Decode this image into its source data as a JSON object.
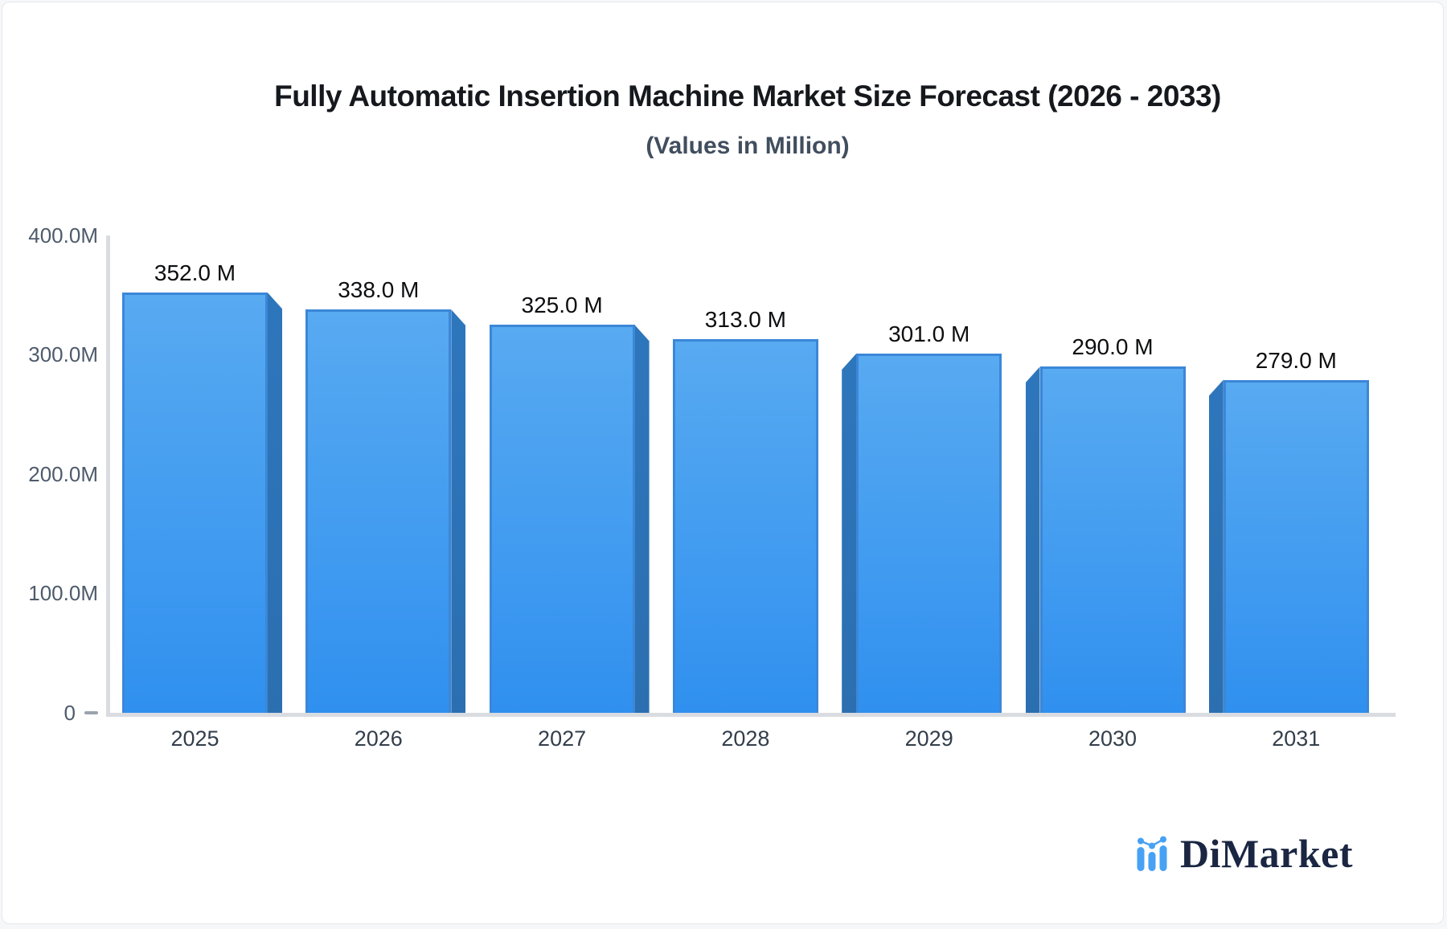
{
  "header": {
    "title": "Fully Automatic Insertion Machine Market Size Forecast (2026 - 2033)",
    "subtitle": "(Values in Million)"
  },
  "chart_data": {
    "type": "bar",
    "title": "Fully Automatic Insertion Machine Market Size Forecast (2026 - 2033)",
    "subtitle": "(Values in Million)",
    "unit": "Million",
    "categories": [
      "2025",
      "2026",
      "2027",
      "2028",
      "2029",
      "2030",
      "2031"
    ],
    "values": [
      352,
      338,
      325,
      313,
      301,
      290,
      279
    ],
    "value_labels": [
      "352.0 M",
      "338.0 M",
      "325.0 M",
      "313.0 M",
      "301.0 M",
      "290.0 M",
      "279.0 M"
    ],
    "ylim": [
      0,
      400
    ],
    "yticks": [
      {
        "label": "400.0M",
        "value": 400
      },
      {
        "label": "300.0M",
        "value": 300
      },
      {
        "label": "200.0M",
        "value": 200
      },
      {
        "label": "100.0M",
        "value": 100
      },
      {
        "label": "0",
        "value": 0
      }
    ],
    "grid": false,
    "legend": false,
    "colors": {
      "bar_face_top": "#58AAF1",
      "bar_face_bottom": "#3090EF",
      "bar_stroke": "#3B87D8",
      "bar_side_top": "#2E76BC",
      "bar_side_bottom": "#2B6FB0",
      "axis": "#D9DCE1",
      "ytick_text": "#4E5B6B",
      "xlabel_text": "#333E4B",
      "value_text": "#0D0E10"
    }
  },
  "logo": {
    "text": "DiMarket",
    "icon": "dimarket-bars-icon",
    "icon_color": "#47A1F4",
    "text_color": "#1A2642"
  }
}
